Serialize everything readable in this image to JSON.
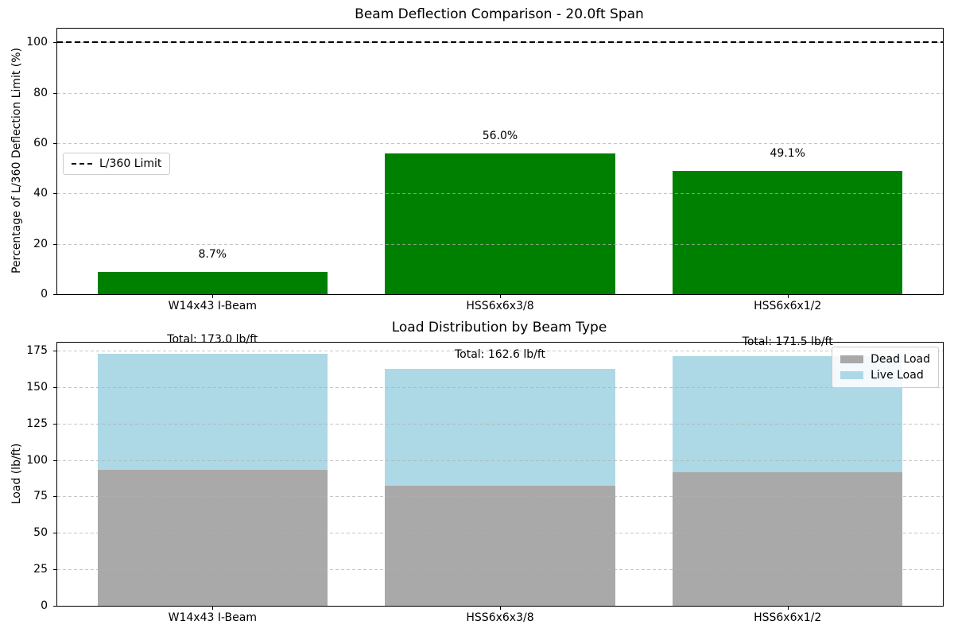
{
  "chart_data": [
    {
      "type": "bar",
      "title": "Beam Deflection Comparison - 20.0ft Span",
      "ylabel": "Percentage of L/360 Deflection Limit (%)",
      "xlabel": "",
      "categories": [
        "W14x43 I-Beam",
        "HSS6x6x3/8",
        "HSS6x6x1/2"
      ],
      "values": [
        8.7,
        56.0,
        49.1
      ],
      "bar_labels": [
        "8.7%",
        "56.0%",
        "49.1%"
      ],
      "bar_color": "#008000",
      "ylim": [
        0,
        105.5
      ],
      "xlim": [
        -0.54,
        2.54
      ],
      "yticks": [
        0,
        20,
        40,
        60,
        80,
        100
      ],
      "grid": "dashed horizontal",
      "hline": {
        "value": 100,
        "style": "dashed",
        "color": "#000000",
        "label": "L/360 Limit"
      },
      "legend": {
        "position": "center left",
        "entries": [
          {
            "label": "L/360 Limit",
            "marker": "dashed-line",
            "color": "#000000"
          }
        ]
      }
    },
    {
      "type": "bar",
      "subtype": "stacked",
      "title": "Load Distribution by Beam Type",
      "ylabel": "Load (lb/ft)",
      "xlabel": "",
      "categories": [
        "W14x43 I-Beam",
        "HSS6x6x3/8",
        "HSS6x6x1/2"
      ],
      "series": [
        {
          "name": "Dead Load",
          "color": "#a9a9a9",
          "values": [
            93.0,
            82.6,
            91.5
          ]
        },
        {
          "name": "Live Load",
          "color": "#add8e6",
          "values": [
            80.0,
            80.0,
            80.0
          ]
        }
      ],
      "totals": [
        173.0,
        162.6,
        171.5
      ],
      "total_labels": [
        "Total: 173.0 lb/ft",
        "Total: 162.6 lb/ft",
        "Total: 171.5 lb/ft"
      ],
      "ylim": [
        0,
        180.5
      ],
      "xlim": [
        -0.54,
        2.54
      ],
      "yticks": [
        0,
        25,
        50,
        75,
        100,
        125,
        150,
        175
      ],
      "grid": "dashed horizontal",
      "legend": {
        "position": "upper right",
        "entries": [
          {
            "label": "Dead Load",
            "marker": "patch",
            "color": "#a9a9a9"
          },
          {
            "label": "Live Load",
            "marker": "patch",
            "color": "#add8e6"
          }
        ]
      }
    }
  ]
}
